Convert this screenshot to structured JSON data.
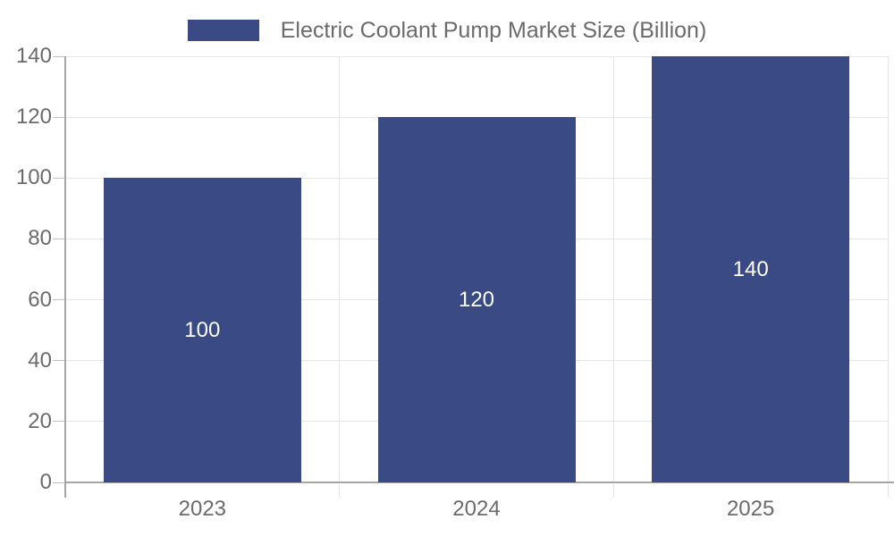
{
  "chart_data": {
    "type": "bar",
    "title": "Electric Coolant Pump Market Size (Billion)",
    "legend": [
      "Electric Coolant Pump Market Size (Billion)"
    ],
    "legend_position": "top-center",
    "categories": [
      "2023",
      "2024",
      "2025"
    ],
    "values": [
      100,
      120,
      140
    ],
    "bar_labels": [
      "100",
      "120",
      "140"
    ],
    "xlabel": "",
    "ylabel": "",
    "ylim": [
      0,
      140
    ],
    "yticks": [
      0,
      20,
      40,
      60,
      80,
      100,
      120,
      140
    ],
    "grid": true
  },
  "colors": {
    "bar": "#394A84",
    "bar_label": "#FFFFFF",
    "text": "#6B6B6B",
    "grid": "#E6E6E6",
    "axis": "#A6A6A6",
    "background": "#FFFFFF"
  }
}
